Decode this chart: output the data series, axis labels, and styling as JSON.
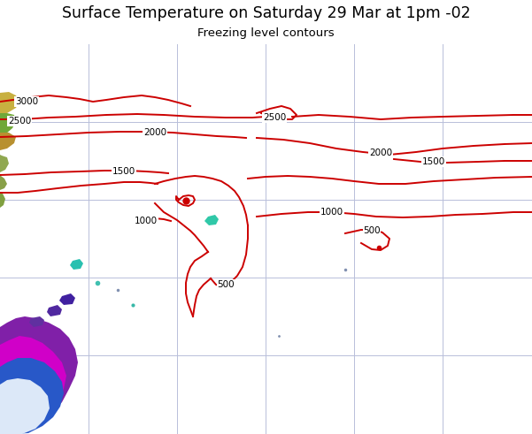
{
  "title": "Surface Temperature on Saturday 29 Mar at 1pm -02",
  "subtitle": "Freezing level contours",
  "title_fontsize": 12.5,
  "subtitle_fontsize": 9.5,
  "map_bg_color": "#cdd4ea",
  "grid_color": "#b8bfda",
  "contour_color": "#cc0000",
  "contour_linewidth": 1.4,
  "figsize": [
    6.01,
    4.91
  ],
  "dpi": 100
}
